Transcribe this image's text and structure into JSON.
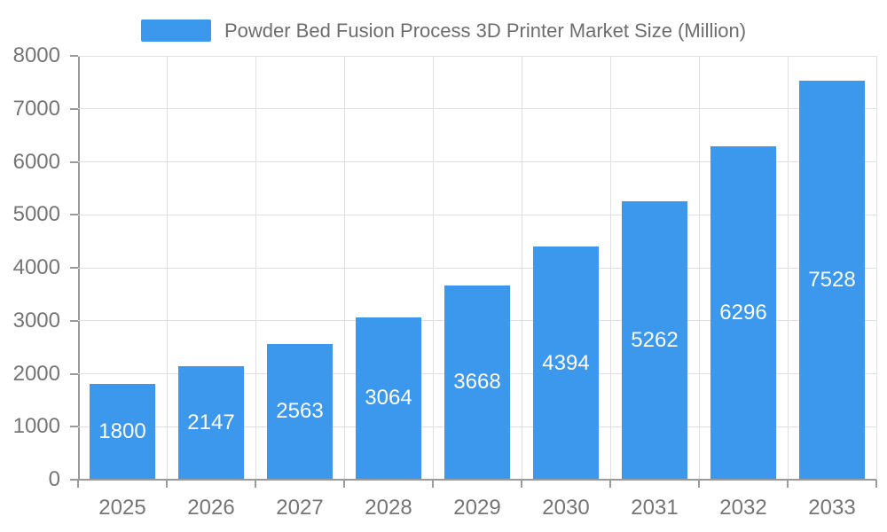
{
  "legend": {
    "label": "Powder Bed Fusion Process 3D Printer Market Size (Million)"
  },
  "chart_data": {
    "type": "bar",
    "title": "Powder Bed Fusion Process 3D Printer Market Size (Million)",
    "categories": [
      "2025",
      "2026",
      "2027",
      "2028",
      "2029",
      "2030",
      "2031",
      "2032",
      "2033"
    ],
    "values": [
      1800,
      2147,
      2563,
      3064,
      3668,
      4394,
      5262,
      6296,
      7528
    ],
    "xlabel": "",
    "ylabel": "",
    "ylim": [
      0,
      8000
    ],
    "ytick_step": 1000,
    "grid": true,
    "legend_position": "top",
    "colors": {
      "bar": "#3b98ec",
      "bar_value_label": "#ffffff",
      "grid": "#e0e0e0",
      "axis": "#9a9a9a",
      "tick_label": "#757575",
      "title": "#6d6d6d"
    }
  }
}
